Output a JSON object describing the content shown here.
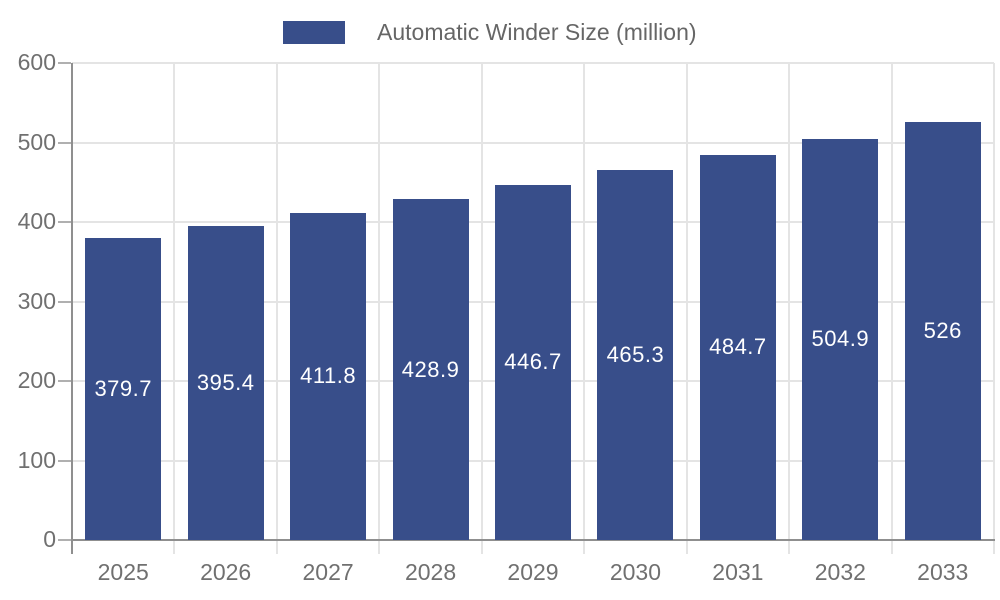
{
  "legend": {
    "label": "Automatic Winder Size (million)"
  },
  "colors": {
    "bar": "#384E8A",
    "axis": "#8F8F8F",
    "grid": "#E4E4E4",
    "tick": "#B0B0B0",
    "tick_text": "#707070",
    "legend_text": "#666666",
    "value_label": "#FFFFFF",
    "background": "#FFFFFF"
  },
  "chart_data": {
    "type": "bar",
    "title": "",
    "xlabel": "",
    "ylabel": "",
    "categories": [
      "2025",
      "2026",
      "2027",
      "2028",
      "2029",
      "2030",
      "2031",
      "2032",
      "2033"
    ],
    "series": [
      {
        "name": "Automatic Winder Size (million)",
        "values": [
          379.7,
          395.4,
          411.8,
          428.9,
          446.7,
          465.3,
          484.7,
          504.9,
          526
        ]
      }
    ],
    "value_labels": [
      "379.7",
      "395.4",
      "411.8",
      "428.9",
      "446.7",
      "465.3",
      "484.7",
      "504.9",
      "526"
    ],
    "ylim": [
      0,
      600
    ],
    "yticks": [
      0,
      100,
      200,
      300,
      400,
      500,
      600
    ],
    "grid": true,
    "legend_position": "top-center",
    "value_label_position": "inside-center"
  }
}
